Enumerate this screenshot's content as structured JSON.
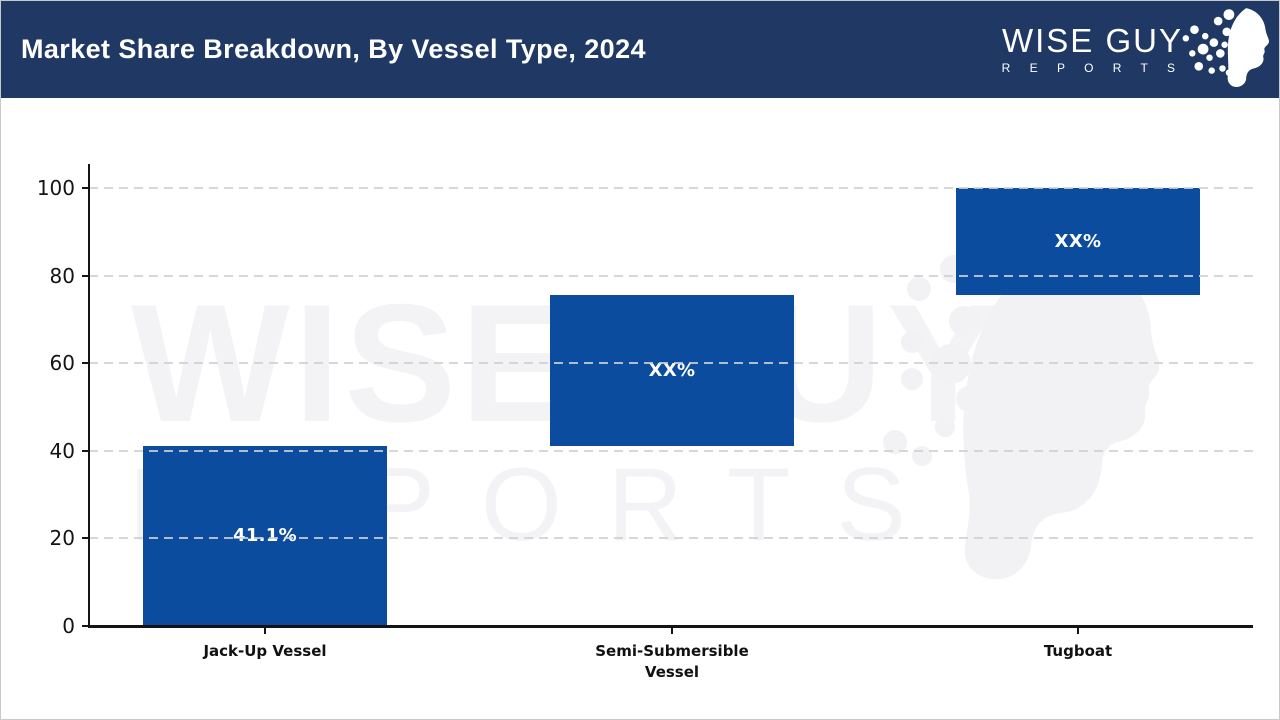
{
  "header": {
    "title": "Market Share Breakdown, By Vessel Type, 2024",
    "logo": {
      "name_line": "WISE GUY",
      "reports_line": "R E P O R T S"
    }
  },
  "watermark": {
    "line1": "WISE GUY",
    "line2": "REPORTS"
  },
  "colors": {
    "header_bg": "#1f3864",
    "bar": "#0b4c9e",
    "bar_label": "#ffffff",
    "grid": "#d0d0d2",
    "axis": "#141414",
    "watermark": "#f3f3f6",
    "page_border": "#c9c9cc"
  },
  "chart_data": {
    "type": "bar",
    "variant": "floating-waterfall",
    "title": "Market Share Breakdown, By Vessel Type, 2024",
    "categories": [
      "Jack-Up Vessel",
      "Semi-Submersible\nVessel",
      "Tugboat"
    ],
    "series": [
      {
        "name": "Market Share %",
        "segments": [
          {
            "from": 0,
            "to": 41.1
          },
          {
            "from": 41.1,
            "to": 75.5
          },
          {
            "from": 75.5,
            "to": 100
          }
        ]
      }
    ],
    "bar_labels": [
      "41.1%",
      "XX%",
      "XX%"
    ],
    "yticks": [
      0,
      20,
      40,
      60,
      80,
      100
    ],
    "ylim": [
      0,
      100
    ],
    "grid": "horizontal-dashed",
    "legend": "none"
  }
}
